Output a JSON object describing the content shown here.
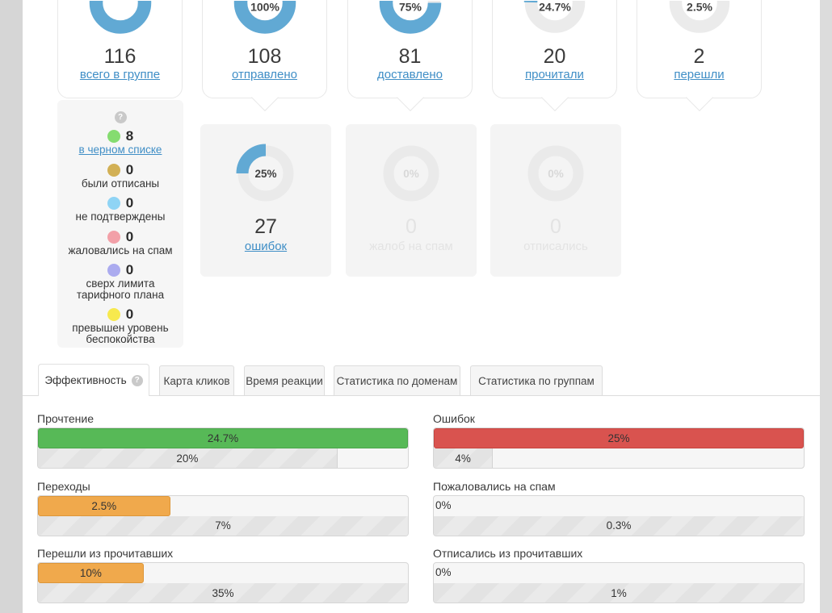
{
  "colors": {
    "accent_blue": "#61a9d4",
    "ring_gray": "#ebebeb",
    "ring_text_dark": "#424242",
    "ring_text_disabled": "#d8d8d8",
    "link_blue": "#3f8ec6",
    "green": "#57b957",
    "orange": "#f0a94c",
    "red": "#d9534f",
    "left_strip": "#d6d6d6",
    "right_strip": "#dcdcdc"
  },
  "summary_cards": [
    {
      "value": "116",
      "label": "всего в группе",
      "percent": 100,
      "percent_label": "",
      "variant": "blue",
      "pointed": false,
      "link": true
    },
    {
      "value": "108",
      "label": "отправлено",
      "percent": 100,
      "percent_label": "100%",
      "variant": "blue",
      "pointed": true,
      "link": true
    },
    {
      "value": "81",
      "label": "доставлено",
      "percent": 75,
      "percent_label": "75%",
      "variant": "blue",
      "pointed": true,
      "link": true
    },
    {
      "value": "20",
      "label": "прочитали",
      "percent": 24.7,
      "percent_label": "24.7%",
      "variant": "gray",
      "pointed": true,
      "link": true
    },
    {
      "value": "2",
      "label": "перешли",
      "percent": 2.5,
      "percent_label": "2.5%",
      "variant": "gray",
      "pointed": true,
      "link": true
    }
  ],
  "breakdown": {
    "help_icon": "?",
    "items": [
      {
        "value": "8",
        "label": "в черном списке",
        "dot_color": "#85dc70",
        "link": true
      },
      {
        "value": "0",
        "label": "были отписаны",
        "dot_color": "#d2b055",
        "link": false
      },
      {
        "value": "0",
        "label": "не подтверждены",
        "dot_color": "#8fd4f5",
        "link": false
      },
      {
        "value": "0",
        "label": "жаловались на спам",
        "dot_color": "#f2a0a8",
        "link": false
      },
      {
        "value": "0",
        "label": "сверх лимита тарифного плана",
        "dot_color": "#ababef",
        "link": false
      },
      {
        "value": "0",
        "label": "превышен уровень беспокойства",
        "dot_color": "#f7e94e",
        "link": false
      }
    ]
  },
  "secondary_cards": [
    {
      "value": "27",
      "label": "ошибок",
      "percent": 25,
      "percent_label": "25%",
      "active": true
    },
    {
      "value": "0",
      "label": "жалоб на спам",
      "percent": 0,
      "percent_label": "0%",
      "active": false
    },
    {
      "value": "0",
      "label": "отписались",
      "percent": 0,
      "percent_label": "0%",
      "active": false
    }
  ],
  "tabs": [
    {
      "label": "Эффективность",
      "active": true,
      "help": "?"
    },
    {
      "label": "Карта кликов",
      "active": false
    },
    {
      "label": "Время реакции",
      "active": false
    },
    {
      "label": "Статистика по доменам",
      "active": false
    },
    {
      "label": "Статистика по группам",
      "active": false
    }
  ],
  "chart_data": {
    "type": "bar",
    "title": "Эффективность",
    "legend": "colored bar = this campaign, striped bar = average",
    "rows": [
      {
        "column": "left",
        "label": "Прочтение",
        "value": 24.7,
        "value_label": "24.7%",
        "value_color": "green",
        "average": 20,
        "average_label": "20%"
      },
      {
        "column": "left",
        "label": "Переходы",
        "value": 2.5,
        "value_label": "2.5%",
        "value_color": "orange",
        "average": 7,
        "average_label": "7%"
      },
      {
        "column": "left",
        "label": "Перешли из прочитавших",
        "value": 10,
        "value_label": "10%",
        "value_color": "orange",
        "average": 35,
        "average_label": "35%"
      },
      {
        "column": "right",
        "label": "Ошибок",
        "value": 25,
        "value_label": "25%",
        "value_color": "red",
        "average": 4,
        "average_label": "4%"
      },
      {
        "column": "right",
        "label": "Пожаловались на спам",
        "value": 0,
        "value_label": "0%",
        "value_color": "orange",
        "average": 0.3,
        "average_label": "0.3%"
      },
      {
        "column": "right",
        "label": "Отписались из прочитавших",
        "value": 0,
        "value_label": "0%",
        "value_color": "orange",
        "average": 1,
        "average_label": "1%"
      }
    ]
  }
}
